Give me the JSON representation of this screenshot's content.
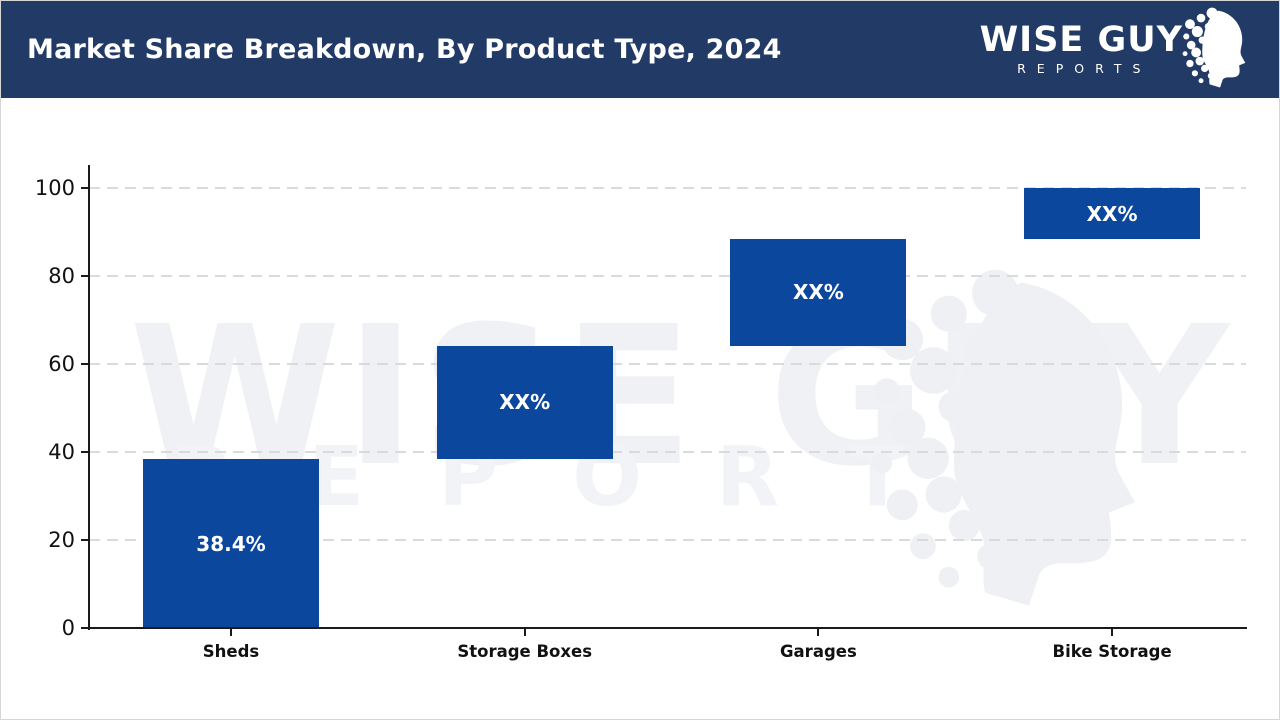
{
  "header": {
    "title": "Market Share Breakdown, By Product Type, 2024",
    "bg_color": "#223A66",
    "logo": {
      "name": "WISE GUY",
      "subtitle": "REPORTS",
      "head_icon": "dotted-head-profile"
    }
  },
  "watermark": {
    "line1": "WISE GUY",
    "line2": "REPORTS",
    "head_icon": "dotted-head-profile"
  },
  "chart_data": {
    "type": "bar",
    "subtype": "waterfall",
    "title": "Market Share Breakdown, By Product Type, 2024",
    "categories": [
      "Sheds",
      "Storage Boxes",
      "Garages",
      "Bike Storage"
    ],
    "segments": [
      {
        "category": "Sheds",
        "start": 0,
        "end": 38.4,
        "label": "38.4%"
      },
      {
        "category": "Storage Boxes",
        "start": 38.4,
        "end": 64.1,
        "label": "XX%"
      },
      {
        "category": "Garages",
        "start": 64.1,
        "end": 88.4,
        "label": "XX%"
      },
      {
        "category": "Bike Storage",
        "start": 88.4,
        "end": 100,
        "label": "XX%"
      }
    ],
    "xlabel": "",
    "ylabel": "",
    "yticks": [
      0,
      20,
      40,
      60,
      80,
      100
    ],
    "ylim": [
      0,
      105
    ],
    "grid": "horizontal-dashed",
    "legend": "none",
    "bar_color": "#0B479D",
    "bar_label_color": "#ffffff",
    "axis_color": "#1a1a1a",
    "grid_color": "#dadada"
  }
}
